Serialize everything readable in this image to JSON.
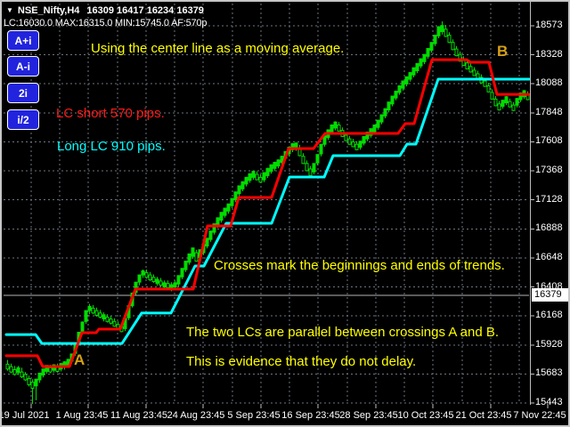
{
  "window": {
    "dropdown_icon": "▼",
    "symbol_title": "NSE_Nifty,H4",
    "ohlc_line": "16309 16417 16234 16379",
    "indicator_status": "LC:16030.0 MAX:16315.0 MIN:15745.0 AF:570p"
  },
  "buttons": [
    {
      "label": "A+i"
    },
    {
      "label": "A-i"
    },
    {
      "label": "2i"
    },
    {
      "label": "i/2"
    }
  ],
  "annotations": {
    "center_line": {
      "text": "Using the center line as a moving average.",
      "color": "#ffff00"
    },
    "lc_short": {
      "text": "LC short 570 pips.",
      "color": "#ff1a1a"
    },
    "lc_long": {
      "text": "Long LC 910 pips.",
      "color": "#00ffff"
    },
    "crosses": {
      "text": "Crosses mark the beginnings and ends of trends.",
      "color": "#ffff00"
    },
    "parallel": {
      "text": "The two LCs are parallel between crossings A and B.",
      "color": "#ffff00"
    },
    "evidence": {
      "text": "This is evidence that they do not delay.",
      "color": "#ffff00"
    },
    "marker_a": "A",
    "marker_b": "B"
  },
  "price_axis": {
    "current_price": "16379"
  },
  "colors": {
    "background": "#000000",
    "grid": "#6d747e",
    "candle": "#00dc00",
    "lc_short_line": "#ff0000",
    "lc_long_line": "#00ffff",
    "bid_line": "#b4b4b4",
    "button_bg": "#2224dd",
    "marker": "#d4a017",
    "axis_text": "#ffffff"
  },
  "chart_data": {
    "type": "candlestick",
    "symbol": "NSE_Nifty",
    "timeframe": "H4",
    "price_ticks": [
      18573,
      18328,
      18088,
      17848,
      17608,
      17368,
      17128,
      16888,
      16648,
      16408,
      16168,
      15928,
      15683,
      15443
    ],
    "time_labels": [
      "19 Jul 2021",
      "1 Aug 23:45",
      "11 Aug 23:45",
      "24 Aug 23:45",
      "5 Sep 23:45",
      "16 Sep 23:45",
      "28 Sep 23:45",
      "10 Oct 23:45",
      "21 Oct 23:45",
      "7 Nov 22:45"
    ],
    "current_price": 16379,
    "grid": true,
    "series": [
      {
        "name": "Long LC",
        "color": "#00ffff",
        "points": [
          [
            5,
            16011
          ],
          [
            38,
            16011
          ],
          [
            45,
            15937
          ],
          [
            135,
            15937
          ],
          [
            157,
            16189
          ],
          [
            190,
            16189
          ],
          [
            217,
            16580
          ],
          [
            227,
            16580
          ],
          [
            252,
            16934
          ],
          [
            303,
            16934
          ],
          [
            323,
            17318
          ],
          [
            362,
            17318
          ],
          [
            372,
            17495
          ],
          [
            447,
            17495
          ],
          [
            455,
            17591
          ],
          [
            465,
            17591
          ],
          [
            490,
            18130
          ],
          [
            592,
            18130
          ]
        ]
      },
      {
        "name": "LC short",
        "color": "#ff0000",
        "points": [
          [
            5,
            15835
          ],
          [
            40,
            15835
          ],
          [
            46,
            15746
          ],
          [
            76,
            15746
          ],
          [
            90,
            16026
          ],
          [
            106,
            16026
          ],
          [
            109,
            16056
          ],
          [
            133,
            16056
          ],
          [
            150,
            16388
          ],
          [
            215,
            16388
          ],
          [
            231,
            16912
          ],
          [
            257,
            16912
          ],
          [
            266,
            17148
          ],
          [
            303,
            17148
          ],
          [
            322,
            17554
          ],
          [
            350,
            17554
          ],
          [
            363,
            17680
          ],
          [
            445,
            17680
          ],
          [
            453,
            17761
          ],
          [
            463,
            17761
          ],
          [
            483,
            18292
          ],
          [
            522,
            18292
          ],
          [
            526,
            18270
          ],
          [
            547,
            18270
          ],
          [
            556,
            18004
          ],
          [
            592,
            18004
          ]
        ]
      }
    ],
    "candles_ohlc": [
      [
        15765,
        15800,
        15710,
        15725
      ],
      [
        15745,
        15770,
        15690,
        15700
      ],
      [
        15720,
        15750,
        15670,
        15680
      ],
      [
        15695,
        15750,
        15675,
        15735
      ],
      [
        15700,
        15735,
        15650,
        15660
      ],
      [
        15680,
        15700,
        15625,
        15635
      ],
      [
        15645,
        15670,
        15580,
        15595
      ],
      [
        15615,
        15640,
        15435,
        15565
      ],
      [
        15585,
        15645,
        15465,
        15640
      ],
      [
        15635,
        15690,
        15610,
        15690
      ],
      [
        15675,
        15725,
        15655,
        15725
      ],
      [
        15705,
        15755,
        15685,
        15755
      ],
      [
        15735,
        15760,
        15690,
        15700
      ],
      [
        15715,
        15765,
        15695,
        15760
      ],
      [
        15740,
        15770,
        15695,
        15705
      ],
      [
        15725,
        15775,
        15705,
        15770
      ],
      [
        15740,
        15790,
        15720,
        15785
      ],
      [
        15760,
        15810,
        15740,
        15805
      ],
      [
        15790,
        15850,
        15770,
        15850
      ],
      [
        15855,
        15940,
        15835,
        15935
      ],
      [
        15940,
        16030,
        15920,
        16030
      ],
      [
        16030,
        16120,
        16010,
        16115
      ],
      [
        16120,
        16210,
        16100,
        16210
      ],
      [
        16210,
        16265,
        16180,
        16245
      ],
      [
        16230,
        16255,
        16180,
        16190
      ],
      [
        16210,
        16235,
        16160,
        16170
      ],
      [
        16190,
        16215,
        16145,
        16155
      ],
      [
        16140,
        16195,
        16120,
        16175
      ],
      [
        16155,
        16180,
        16110,
        16120
      ],
      [
        16140,
        16165,
        16095,
        16105
      ],
      [
        16120,
        16145,
        16075,
        16080
      ],
      [
        16095,
        16120,
        16050,
        16060
      ],
      [
        16075,
        16100,
        16030,
        16035
      ],
      [
        16060,
        16150,
        16040,
        16145
      ],
      [
        16150,
        16250,
        16130,
        16250
      ],
      [
        16250,
        16360,
        16235,
        16355
      ],
      [
        16360,
        16450,
        16340,
        16445
      ],
      [
        16445,
        16510,
        16420,
        16505
      ],
      [
        16505,
        16550,
        16480,
        16540
      ],
      [
        16525,
        16550,
        16475,
        16485
      ],
      [
        16505,
        16530,
        16455,
        16465
      ],
      [
        16485,
        16510,
        16440,
        16450
      ],
      [
        16435,
        16490,
        16415,
        16470
      ],
      [
        16455,
        16480,
        16410,
        16420
      ],
      [
        16405,
        16460,
        16385,
        16440
      ],
      [
        16435,
        16460,
        16390,
        16400
      ],
      [
        16390,
        16445,
        16370,
        16425
      ],
      [
        16405,
        16460,
        16385,
        16440
      ],
      [
        16430,
        16500,
        16410,
        16500
      ],
      [
        16490,
        16560,
        16470,
        16560
      ],
      [
        16550,
        16620,
        16530,
        16620
      ],
      [
        16610,
        16680,
        16590,
        16680
      ],
      [
        16660,
        16730,
        16640,
        16730
      ],
      [
        16690,
        16715,
        16615,
        16620
      ],
      [
        16650,
        16715,
        16630,
        16715
      ],
      [
        16690,
        16760,
        16670,
        16760
      ],
      [
        16745,
        16810,
        16725,
        16810
      ],
      [
        16800,
        16870,
        16780,
        16870
      ],
      [
        16860,
        16930,
        16840,
        16930
      ],
      [
        16915,
        16980,
        16895,
        16980
      ],
      [
        16960,
        17025,
        16940,
        17025
      ],
      [
        17000,
        17060,
        16980,
        17060
      ],
      [
        17035,
        17095,
        17015,
        17095
      ],
      [
        17080,
        17140,
        17060,
        17140
      ],
      [
        17130,
        17195,
        17110,
        17195
      ],
      [
        17180,
        17245,
        17160,
        17245
      ],
      [
        17220,
        17280,
        17200,
        17280
      ],
      [
        17260,
        17320,
        17240,
        17315
      ],
      [
        17290,
        17350,
        17270,
        17345
      ],
      [
        17315,
        17370,
        17295,
        17365
      ],
      [
        17340,
        17365,
        17290,
        17295
      ],
      [
        17315,
        17340,
        17270,
        17275
      ],
      [
        17295,
        17355,
        17275,
        17355
      ],
      [
        17330,
        17395,
        17310,
        17390
      ],
      [
        17365,
        17420,
        17345,
        17420
      ],
      [
        17390,
        17445,
        17370,
        17440
      ],
      [
        17410,
        17465,
        17390,
        17460
      ],
      [
        17440,
        17495,
        17420,
        17490
      ],
      [
        17475,
        17530,
        17455,
        17530
      ],
      [
        17510,
        17570,
        17490,
        17565
      ],
      [
        17545,
        17600,
        17525,
        17595
      ],
      [
        17555,
        17605,
        17535,
        17600
      ],
      [
        17560,
        17585,
        17490,
        17495
      ],
      [
        17490,
        17515,
        17425,
        17430
      ],
      [
        17430,
        17455,
        17365,
        17370
      ],
      [
        17385,
        17410,
        17325,
        17330
      ],
      [
        17360,
        17430,
        17340,
        17430
      ],
      [
        17435,
        17505,
        17415,
        17505
      ],
      [
        17510,
        17590,
        17490,
        17590
      ],
      [
        17590,
        17660,
        17570,
        17660
      ],
      [
        17645,
        17710,
        17625,
        17710
      ],
      [
        17695,
        17755,
        17675,
        17750
      ],
      [
        17725,
        17780,
        17705,
        17775
      ],
      [
        17750,
        17775,
        17695,
        17700
      ],
      [
        17705,
        17730,
        17650,
        17655
      ],
      [
        17665,
        17690,
        17615,
        17620
      ],
      [
        17635,
        17660,
        17585,
        17590
      ],
      [
        17610,
        17635,
        17565,
        17570
      ],
      [
        17590,
        17615,
        17540,
        17545
      ],
      [
        17565,
        17620,
        17545,
        17615
      ],
      [
        17600,
        17655,
        17580,
        17655
      ],
      [
        17635,
        17695,
        17615,
        17690
      ],
      [
        17665,
        17720,
        17645,
        17720
      ],
      [
        17695,
        17750,
        17675,
        17750
      ],
      [
        17730,
        17790,
        17710,
        17790
      ],
      [
        17775,
        17835,
        17755,
        17835
      ],
      [
        17825,
        17890,
        17805,
        17885
      ],
      [
        17875,
        17940,
        17855,
        17940
      ],
      [
        17925,
        17990,
        17905,
        17990
      ],
      [
        17975,
        18035,
        17955,
        18030
      ],
      [
        18020,
        18080,
        18000,
        18075
      ],
      [
        18055,
        18115,
        18035,
        18115
      ],
      [
        18090,
        18150,
        18070,
        18150
      ],
      [
        18130,
        18190,
        18110,
        18185
      ],
      [
        18165,
        18225,
        18145,
        18225
      ],
      [
        18200,
        18260,
        18180,
        18260
      ],
      [
        18240,
        18300,
        18220,
        18300
      ],
      [
        18275,
        18335,
        18255,
        18335
      ],
      [
        18320,
        18385,
        18300,
        18385
      ],
      [
        18370,
        18435,
        18350,
        18435
      ],
      [
        18425,
        18495,
        18405,
        18495
      ],
      [
        18490,
        18570,
        18470,
        18565
      ],
      [
        18525,
        18610,
        18500,
        18575
      ],
      [
        18545,
        18580,
        18480,
        18485
      ],
      [
        18495,
        18520,
        18430,
        18435
      ],
      [
        18435,
        18460,
        18370,
        18375
      ],
      [
        18380,
        18405,
        18320,
        18325
      ],
      [
        18335,
        18360,
        18275,
        18280
      ],
      [
        18295,
        18320,
        18240,
        18245
      ],
      [
        18265,
        18290,
        18215,
        18215
      ],
      [
        18235,
        18260,
        18185,
        18190
      ],
      [
        18205,
        18230,
        18155,
        18160
      ],
      [
        18175,
        18200,
        18125,
        18130
      ],
      [
        18145,
        18170,
        18095,
        18100
      ],
      [
        18115,
        18140,
        18065,
        18070
      ],
      [
        18075,
        18100,
        18020,
        18025
      ],
      [
        18020,
        18045,
        17960,
        17965
      ],
      [
        17965,
        17990,
        17905,
        17910
      ],
      [
        17925,
        17950,
        17870,
        17875
      ],
      [
        17905,
        17960,
        17885,
        17955
      ],
      [
        17935,
        17990,
        17915,
        17985
      ],
      [
        17945,
        17970,
        17895,
        17900
      ],
      [
        17915,
        17940,
        17865,
        17870
      ],
      [
        17915,
        17975,
        17895,
        17970
      ],
      [
        17960,
        18020,
        17940,
        18015
      ],
      [
        17985,
        18040,
        17965,
        18035
      ],
      [
        18005,
        18030,
        17955,
        17960
      ]
    ]
  }
}
